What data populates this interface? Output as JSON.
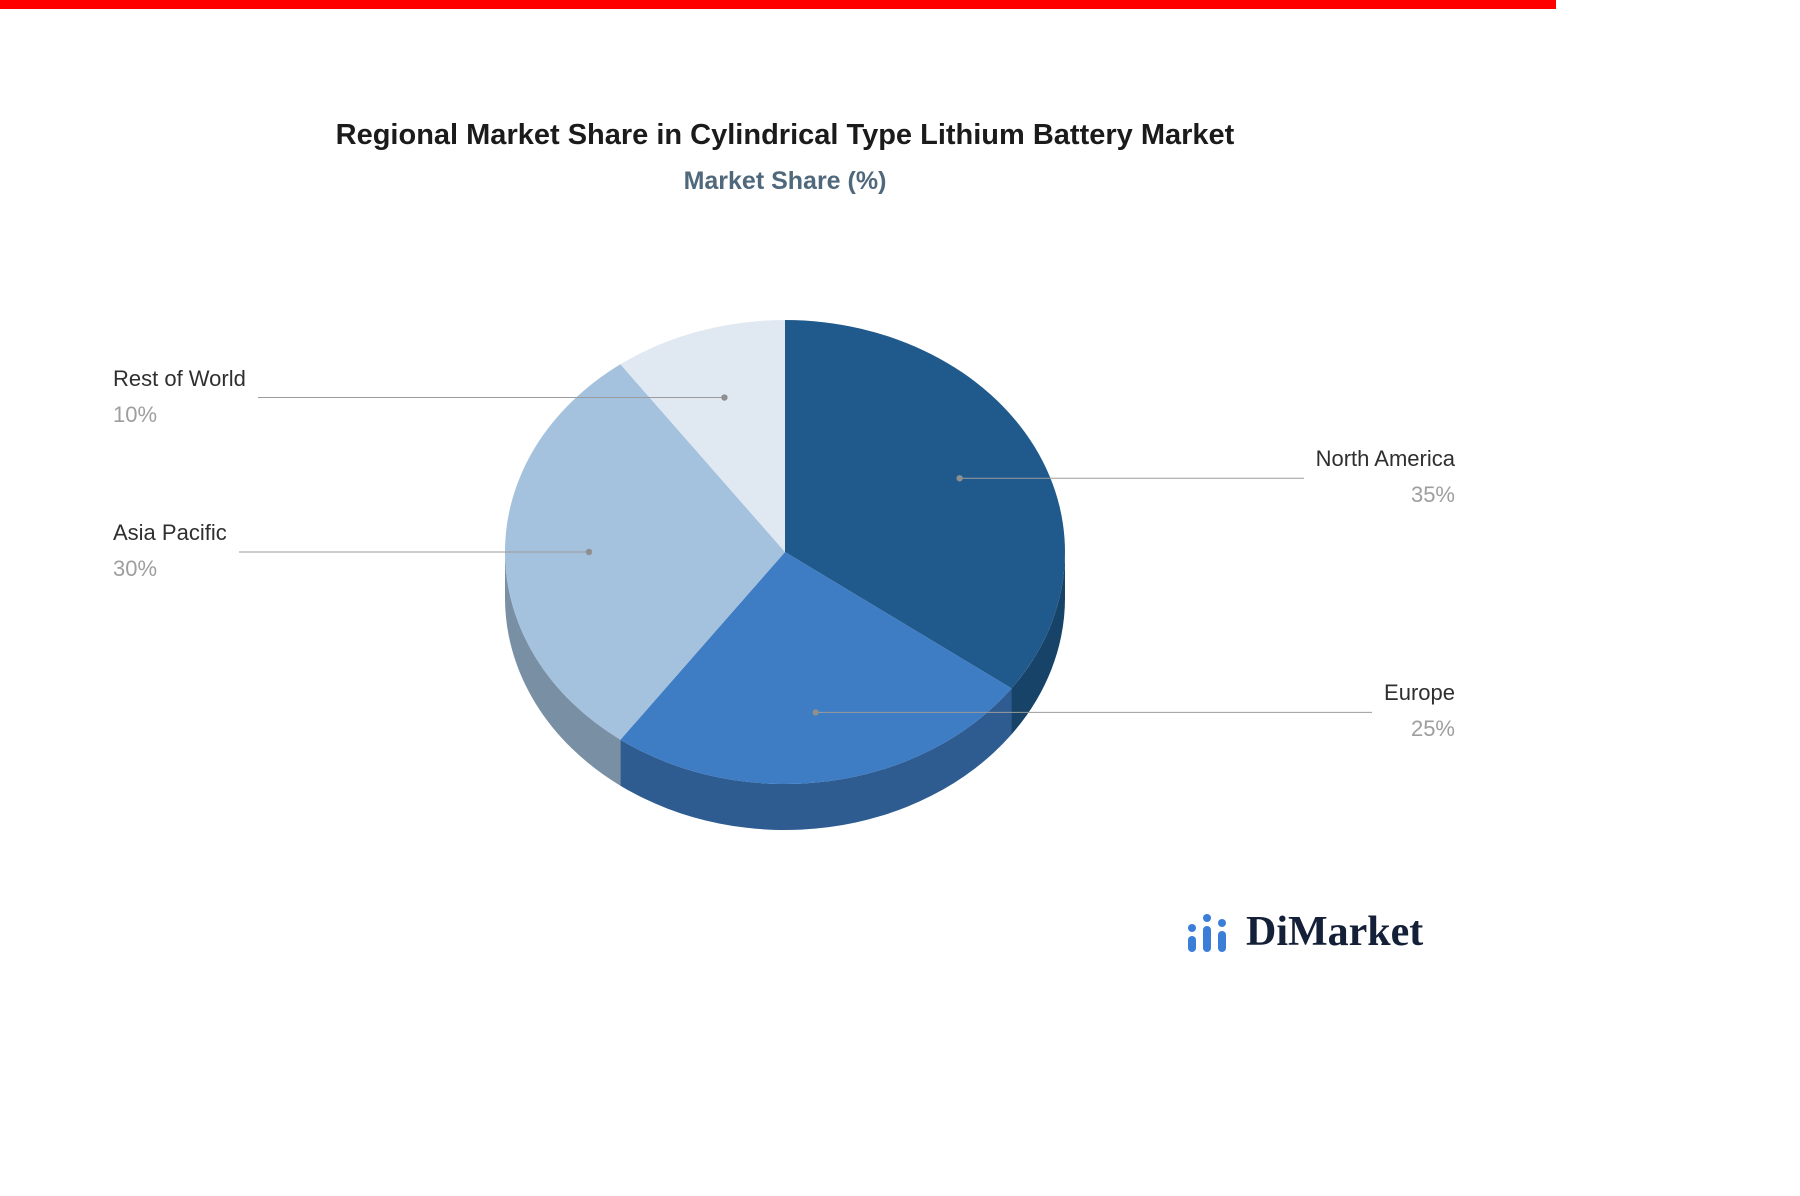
{
  "page": {
    "accent_bar_color": "#fe0000",
    "background_color": "#ffffff"
  },
  "header": {
    "title": "Regional Market Share in Cylindrical Type Lithium Battery Market",
    "subtitle": "Market Share (%)"
  },
  "logo": {
    "text": "DiMarket",
    "icon": "bar-chart-icon",
    "icon_color": "#3b7ed8",
    "text_color": "#141f38"
  },
  "chart_data": {
    "type": "pie",
    "style": "3d",
    "title": "Regional Market Share in Cylindrical Type Lithium Battery Market",
    "subtitle": "Market Share (%)",
    "unit": "%",
    "start_angle_deg": 0,
    "direction": "clockwise",
    "legend_position": "none",
    "label_style": "callout-lines-with-dots",
    "labels": [
      "North America",
      "Europe",
      "Asia Pacific",
      "Rest of World"
    ],
    "values": [
      35,
      25,
      30,
      10
    ],
    "display_values": [
      "35%",
      "25%",
      "30%",
      "10%"
    ],
    "colors": [
      "#205a8c",
      "#3e7cc4",
      "#a4c1dd",
      "#e0e8f2"
    ],
    "label_sides": [
      "right",
      "right",
      "left",
      "left"
    ],
    "line_color": "#9b9b9b",
    "label_text_color": "#2f2f2f",
    "label_value_color": "#9e9e9e"
  }
}
